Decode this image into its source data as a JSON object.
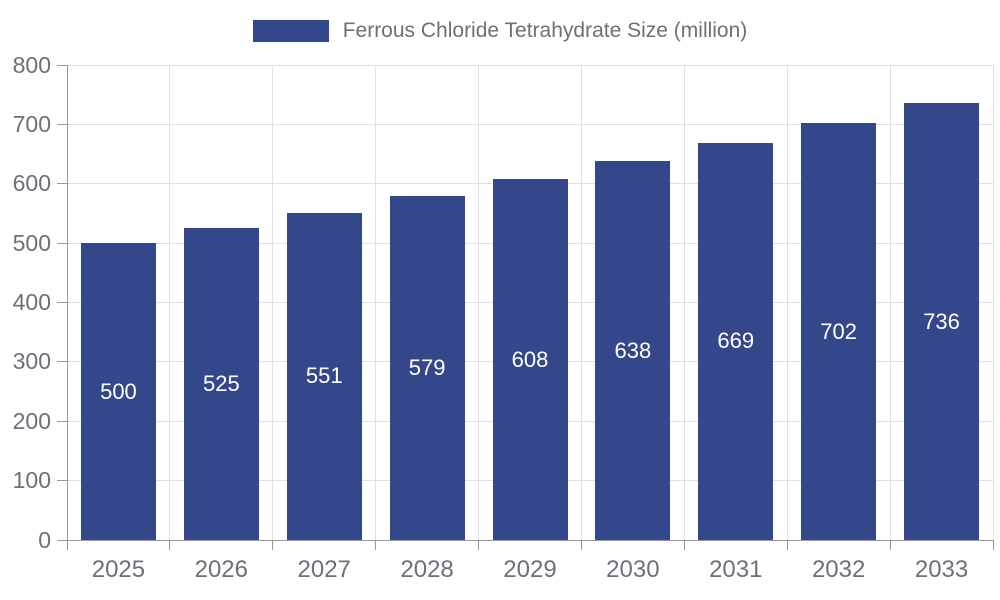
{
  "legend": {
    "label": "Ferrous Chloride Tetrahydrate Size (million)"
  },
  "chart_data": {
    "type": "bar",
    "title": "Ferrous Chloride Tetrahydrate Size (million)",
    "categories": [
      "2025",
      "2026",
      "2027",
      "2028",
      "2029",
      "2030",
      "2031",
      "2032",
      "2033"
    ],
    "values": [
      500,
      525,
      551,
      579,
      608,
      638,
      669,
      702,
      736
    ],
    "series": [
      {
        "name": "Ferrous Chloride Tetrahydrate Size (million)",
        "values": [
          500,
          525,
          551,
          579,
          608,
          638,
          669,
          702,
          736
        ]
      }
    ],
    "xlabel": "",
    "ylabel": "",
    "ylim": [
      0,
      800
    ],
    "ytick_step": 100,
    "yticks": [
      0,
      100,
      200,
      300,
      400,
      500,
      600,
      700,
      800
    ],
    "grid": true,
    "legend_position": "top-center",
    "value_labels": "inside-center",
    "colors": {
      "bar": "#35478b",
      "bar_label_text": "#ffffff",
      "axis_text": "#6e7079",
      "grid_line": "#e0e0e0",
      "axis_line": "#999999",
      "background": "#ffffff"
    }
  }
}
